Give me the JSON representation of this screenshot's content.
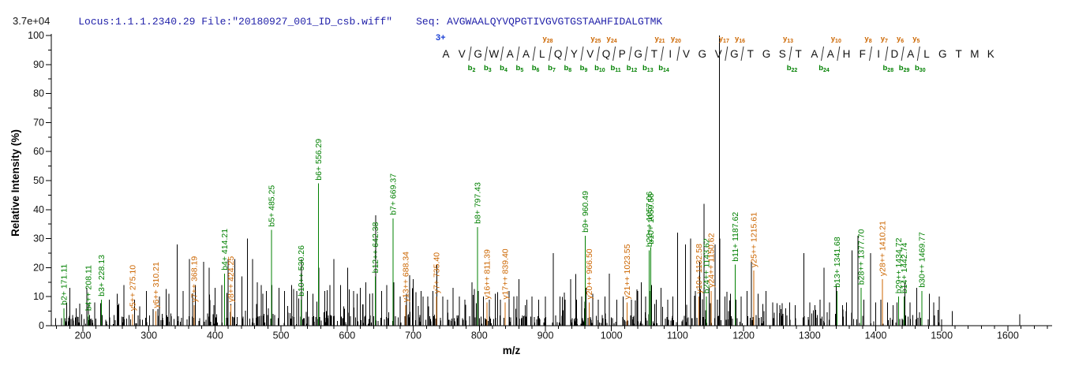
{
  "header": {
    "locus_file": "Locus:1.1.1.2340.29 File:\"20180927_001_ID_csb.wiff\"",
    "seq_label": "Seq:",
    "sequence": "AVGWAALQYVQPGTIVGVGTGSTAAHFIDALGTMK"
  },
  "colors": {
    "b_ion": "#008000",
    "y_ion": "#cc6600",
    "peak": "#000000",
    "axis": "#000000",
    "header_text": "#2222aa",
    "charge_label": "#1a3fd4",
    "divider": "#333333"
  },
  "chart_data": {
    "type": "bar",
    "subtype": "ms2-stick-spectrum",
    "title": "",
    "xlabel": "m/z",
    "ylabel": "Relative  Intensity (%)",
    "y_scale_max": "3.7e+04",
    "xlim": [
      150,
      1665
    ],
    "ylim": [
      0,
      100
    ],
    "x_ticks": [
      200,
      300,
      400,
      500,
      600,
      700,
      800,
      900,
      1000,
      1100,
      1200,
      1300,
      1400,
      1500,
      1600
    ],
    "y_ticks": [
      0,
      10,
      20,
      30,
      40,
      50,
      60,
      70,
      80,
      90,
      100
    ],
    "grid": false,
    "precursor": {
      "charge_label": "3+",
      "mz": 1163.3,
      "intensity": 100
    },
    "labeled_peaks": [
      {
        "label": "b2+ 171.11",
        "series": "b",
        "mz": 171.11,
        "intensity": 6
      },
      {
        "label": "b4++ 208.11",
        "series": "b",
        "mz": 208.11,
        "intensity": 4
      },
      {
        "label": "b3+ 228.13",
        "series": "b",
        "mz": 228.13,
        "intensity": 9
      },
      {
        "label": "y5++ 275.10",
        "series": "y",
        "mz": 275.1,
        "intensity": 4
      },
      {
        "label": "y6++ 310.21",
        "series": "y",
        "mz": 310.21,
        "intensity": 5
      },
      {
        "label": "y7++ 368.19",
        "series": "y",
        "mz": 368.19,
        "intensity": 7
      },
      {
        "label": "b4+ 414.21",
        "series": "b",
        "mz": 414.21,
        "intensity": 18
      },
      {
        "label": "y8++ 424.25",
        "series": "y",
        "mz": 424.25,
        "intensity": 7
      },
      {
        "label": "b5+ 485.25",
        "series": "b",
        "mz": 485.25,
        "intensity": 33
      },
      {
        "label": "b10++ 530.26",
        "series": "b",
        "mz": 530.26,
        "intensity": 9
      },
      {
        "label": "b6+ 556.29",
        "series": "b",
        "mz": 556.29,
        "intensity": 49
      },
      {
        "label": "b12++ 642.38",
        "series": "b",
        "mz": 642.38,
        "intensity": 17
      },
      {
        "label": "b7+ 669.37",
        "series": "b",
        "mz": 669.37,
        "intensity": 37
      },
      {
        "label": "y13++ 688.34",
        "series": "y",
        "mz": 688.34,
        "intensity": 7
      },
      {
        "label": "y7+ 735.40",
        "series": "y",
        "mz": 735.4,
        "intensity": 10
      },
      {
        "label": "b8+ 797.43",
        "series": "b",
        "mz": 797.43,
        "intensity": 34
      },
      {
        "label": "y16++ 811.39",
        "series": "y",
        "mz": 811.39,
        "intensity": 8
      },
      {
        "label": "y17++ 839.40",
        "series": "y",
        "mz": 839.4,
        "intensity": 8
      },
      {
        "label": "b9+ 960.49",
        "series": "b",
        "mz": 960.49,
        "intensity": 31
      },
      {
        "label": "y20++ 966.50",
        "series": "y",
        "mz": 966.5,
        "intensity": 8
      },
      {
        "label": "y21++ 1023.55",
        "series": "y",
        "mz": 1023.55,
        "intensity": 8
      },
      {
        "label": "b22++ 1057.06",
        "series": "b",
        "mz": 1057.06,
        "intensity": 26
      },
      {
        "label": "b10+ 1059.56",
        "series": "b",
        "mz": 1059.56,
        "intensity": 27
      },
      {
        "label": "y10+ 1132.58",
        "series": "y",
        "mz": 1132.58,
        "intensity": 10
      },
      {
        "label": "b24++ 1143.62",
        "series": "b",
        "mz": 1143.62,
        "intensity": 10
      },
      {
        "label": "y24++ 1150.62",
        "series": "y",
        "mz": 1150.62,
        "intensity": 12
      },
      {
        "label": "b11+ 1187.62",
        "series": "b",
        "mz": 1187.62,
        "intensity": 21
      },
      {
        "label": "y25++ 1215.61",
        "series": "y",
        "mz": 1215.61,
        "intensity": 19
      },
      {
        "label": "b13+ 1341.68",
        "series": "b",
        "mz": 1341.68,
        "intensity": 12
      },
      {
        "label": "b28++ 1377.70",
        "series": "b",
        "mz": 1377.7,
        "intensity": 13
      },
      {
        "label": "y28++ 1410.21",
        "series": "y",
        "mz": 1410.21,
        "intensity": 16
      },
      {
        "label": "b29++ 1434.72",
        "series": "b",
        "mz": 1434.72,
        "intensity": 10
      },
      {
        "label": "b14+ 1442.74",
        "series": "b",
        "mz": 1442.74,
        "intensity": 10
      },
      {
        "label": "b30++ 1469.77",
        "series": "b",
        "mz": 1469.77,
        "intensity": 12
      }
    ],
    "major_unlabeled_peaks": [
      [
        180,
        13
      ],
      [
        190,
        6
      ],
      [
        206,
        13
      ],
      [
        218,
        8
      ],
      [
        240,
        9
      ],
      [
        252,
        11
      ],
      [
        262,
        14
      ],
      [
        278,
        9
      ],
      [
        296,
        12
      ],
      [
        316,
        10
      ],
      [
        330,
        11
      ],
      [
        343,
        28
      ],
      [
        352,
        12
      ],
      [
        361,
        23
      ],
      [
        370,
        14
      ],
      [
        383,
        22
      ],
      [
        391,
        20
      ],
      [
        400,
        13
      ],
      [
        410,
        14
      ],
      [
        420,
        23
      ],
      [
        430,
        23
      ],
      [
        441,
        17
      ],
      [
        449,
        30
      ],
      [
        457,
        23
      ],
      [
        464,
        15
      ],
      [
        470,
        14
      ],
      [
        478,
        12
      ],
      [
        486.3,
        14
      ],
      [
        497,
        13
      ],
      [
        505,
        12
      ],
      [
        516,
        14
      ],
      [
        524,
        12
      ],
      [
        531,
        23
      ],
      [
        540,
        12
      ],
      [
        548,
        11
      ],
      [
        557.3,
        20
      ],
      [
        566,
        12
      ],
      [
        574,
        14
      ],
      [
        580,
        23
      ],
      [
        590,
        14
      ],
      [
        601,
        20
      ],
      [
        610,
        12
      ],
      [
        620,
        13
      ],
      [
        628,
        15
      ],
      [
        634,
        11
      ],
      [
        643.4,
        38
      ],
      [
        652,
        12
      ],
      [
        660,
        14
      ],
      [
        670.4,
        15
      ],
      [
        680,
        10
      ],
      [
        690,
        11
      ],
      [
        700,
        16
      ],
      [
        712,
        12
      ],
      [
        722,
        10
      ],
      [
        730,
        12
      ],
      [
        736,
        21
      ],
      [
        745,
        10
      ],
      [
        752,
        9
      ],
      [
        760,
        13
      ],
      [
        770,
        10
      ],
      [
        778,
        9
      ],
      [
        789,
        15
      ],
      [
        798.4,
        12
      ],
      [
        806,
        10
      ],
      [
        815,
        9
      ],
      [
        824,
        11
      ],
      [
        832,
        9
      ],
      [
        845,
        12
      ],
      [
        852,
        10
      ],
      [
        860,
        16
      ],
      [
        872,
        9
      ],
      [
        880,
        10
      ],
      [
        890,
        9
      ],
      [
        900,
        10
      ],
      [
        912,
        25
      ],
      [
        922,
        10
      ],
      [
        930,
        9
      ],
      [
        938,
        16
      ],
      [
        947,
        9
      ],
      [
        955,
        10
      ],
      [
        961.5,
        13
      ],
      [
        972,
        11
      ],
      [
        980,
        9
      ],
      [
        990,
        10
      ],
      [
        997,
        18
      ],
      [
        1008,
        9
      ],
      [
        1018,
        10
      ],
      [
        1030,
        9
      ],
      [
        1040,
        12
      ],
      [
        1045,
        15
      ],
      [
        1052,
        10
      ],
      [
        1060.6,
        14
      ],
      [
        1068,
        9
      ],
      [
        1075,
        13
      ],
      [
        1085,
        9
      ],
      [
        1093,
        10
      ],
      [
        1100,
        32
      ],
      [
        1112,
        28
      ],
      [
        1120,
        30
      ],
      [
        1127,
        12
      ],
      [
        1133.6,
        22
      ],
      [
        1140,
        42
      ],
      [
        1148,
        13
      ],
      [
        1157,
        28
      ],
      [
        1164.3,
        30
      ],
      [
        1172,
        10
      ],
      [
        1180,
        11
      ],
      [
        1188.6,
        9
      ],
      [
        1196,
        10
      ],
      [
        1205,
        12
      ],
      [
        1212,
        22
      ],
      [
        1222,
        11
      ],
      [
        1234,
        12
      ],
      [
        1244,
        8
      ],
      [
        1255,
        7
      ],
      [
        1264,
        6
      ],
      [
        1270,
        8
      ],
      [
        1278,
        7
      ],
      [
        1291,
        25
      ],
      [
        1300,
        8
      ],
      [
        1308,
        7
      ],
      [
        1316,
        9
      ],
      [
        1322,
        20
      ],
      [
        1330,
        8
      ],
      [
        1340,
        14
      ],
      [
        1350,
        7
      ],
      [
        1356,
        8
      ],
      [
        1364,
        26
      ],
      [
        1373,
        31
      ],
      [
        1382,
        9
      ],
      [
        1392,
        25
      ],
      [
        1400,
        8
      ],
      [
        1408,
        9
      ],
      [
        1418,
        8
      ],
      [
        1426,
        7
      ],
      [
        1432,
        8
      ],
      [
        1444,
        15
      ],
      [
        1452,
        8
      ],
      [
        1462,
        13
      ],
      [
        1481,
        11
      ],
      [
        1488,
        8
      ],
      [
        1496,
        10
      ],
      [
        1516,
        5
      ],
      [
        1618,
        4
      ]
    ],
    "noise": {
      "seed": 1337,
      "tiny_count": 430,
      "medium_count": 175,
      "right_count": 30
    },
    "fragment_map": {
      "charge_label": "3+",
      "residues": "AVGWAALQYVQPGTIVGVGTGSTAAHFIDALGTMK",
      "b_sites": [
        2,
        3,
        4,
        5,
        6,
        7,
        8,
        9,
        10,
        11,
        12,
        13,
        14,
        22,
        24,
        28,
        29,
        30
      ],
      "y_sites": [
        [
          7,
          28
        ],
        [
          10,
          25
        ],
        [
          11,
          24
        ],
        [
          14,
          21
        ],
        [
          15,
          20
        ],
        [
          18,
          17
        ],
        [
          19,
          16
        ],
        [
          22,
          13
        ],
        [
          25,
          10
        ],
        [
          27,
          8
        ],
        [
          28,
          7
        ],
        [
          29,
          6
        ],
        [
          30,
          5
        ]
      ]
    }
  }
}
